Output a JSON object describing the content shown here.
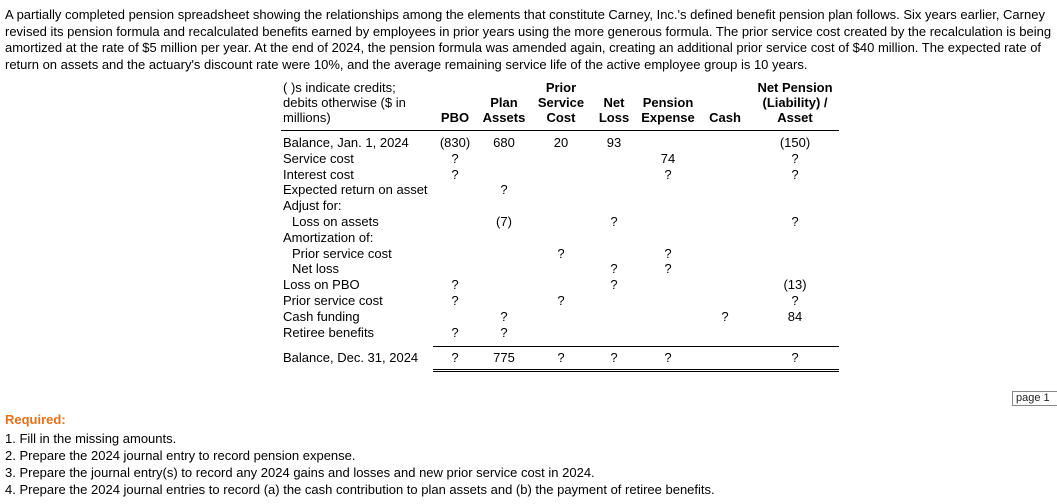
{
  "intro": "A partially completed pension spreadsheet showing the relationships among the elements that constitute Carney, Inc.'s defined benefit pension plan follows. Six years earlier, Carney revised its pension formula and recalculated benefits earned by employees in prior years using the more generous formula. The prior service cost created by the recalculation is being amortized at the rate of $5 million per year. At the end of 2024, the pension formula was amended again, creating an additional prior service cost of $40 million. The expected rate of return on assets and the actuary's discount rate were 10%, and the average remaining service life of the active employee group is 10 years.",
  "table": {
    "note": "( )s indicate credits;\ndebits otherwise ($ in\nmillions)",
    "columns": [
      "PBO",
      "Plan\nAssets",
      "Prior\nService\nCost",
      "Net\nLoss",
      "Pension\nExpense",
      "Cash",
      "Net Pension\n(Liability) /\nAsset"
    ],
    "rows": [
      {
        "label": "Balance, Jan. 1, 2024",
        "indent": 0,
        "cells": [
          "(830)",
          "680",
          "20",
          "93",
          "",
          "",
          "(150)"
        ]
      },
      {
        "label": "Service cost",
        "indent": 0,
        "cells": [
          "?",
          "",
          "",
          "",
          "74",
          "",
          "?"
        ]
      },
      {
        "label": "Interest cost",
        "indent": 0,
        "cells": [
          "?",
          "",
          "",
          "",
          "?",
          "",
          "?"
        ]
      },
      {
        "label": "Expected return on asset",
        "indent": 0,
        "cells": [
          "",
          "?",
          "",
          "",
          "",
          "",
          ""
        ]
      },
      {
        "label": "Adjust for:",
        "indent": 0,
        "cells": [
          "",
          "",
          "",
          "",
          "",
          "",
          ""
        ]
      },
      {
        "label": "Loss on assets",
        "indent": 1,
        "cells": [
          "",
          "(7)",
          "",
          "?",
          "",
          "",
          "?"
        ]
      },
      {
        "label": "Amortization of:",
        "indent": 0,
        "cells": [
          "",
          "",
          "",
          "",
          "",
          "",
          ""
        ]
      },
      {
        "label": "Prior service cost",
        "indent": 1,
        "cells": [
          "",
          "",
          "?",
          "",
          "?",
          "",
          ""
        ]
      },
      {
        "label": "Net loss",
        "indent": 1,
        "cells": [
          "",
          "",
          "",
          "?",
          "?",
          "",
          ""
        ]
      },
      {
        "label": "Loss on PBO",
        "indent": 0,
        "cells": [
          "?",
          "",
          "",
          "?",
          "",
          "",
          "(13)"
        ]
      },
      {
        "label": "Prior service cost",
        "indent": 0,
        "cells": [
          "?",
          "",
          "?",
          "",
          "",
          "",
          "?"
        ]
      },
      {
        "label": "Cash funding",
        "indent": 0,
        "cells": [
          "",
          "?",
          "",
          "",
          "",
          "?",
          "84"
        ]
      },
      {
        "label": "Retiree benefits",
        "indent": 0,
        "cells": [
          "?",
          "?",
          "",
          "",
          "",
          "",
          ""
        ]
      }
    ],
    "total_row": {
      "label": "Balance, Dec. 31, 2024",
      "cells": [
        "?",
        "775",
        "?",
        "?",
        "?",
        "",
        "?"
      ]
    }
  },
  "page_label": "page 1",
  "required": {
    "heading": "Required:",
    "items": [
      "1. Fill in the missing amounts.",
      "2. Prepare the 2024 journal entry to record pension expense.",
      "3. Prepare the journal entry(s) to record any 2024 gains and losses and new prior service cost in 2024.",
      "4. Prepare the 2024 journal entries to record (a) the cash contribution to plan assets and (b) the payment of retiree benefits."
    ]
  },
  "colors": {
    "required_heading": "#e8701a"
  }
}
